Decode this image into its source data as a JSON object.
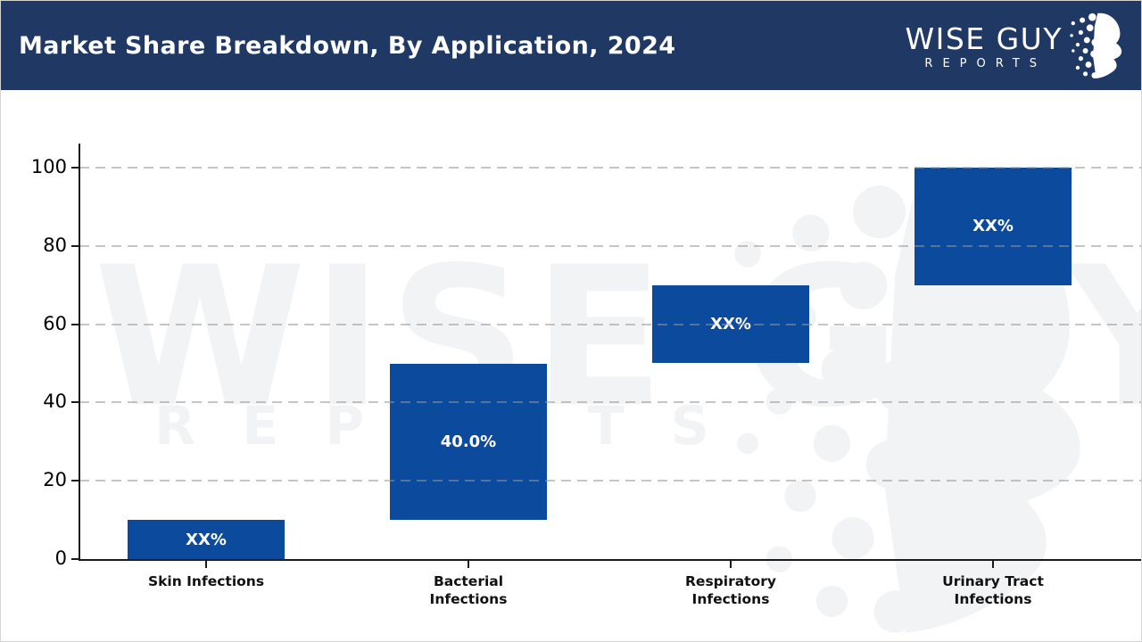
{
  "header": {
    "title": "Market Share Breakdown, By Application, 2024",
    "logo": {
      "name": "WISE GUY",
      "subname": "REPORTS"
    }
  },
  "watermark": {
    "line1": "WISE GUY",
    "line2": "REPORTS"
  },
  "chart_data": {
    "type": "bar",
    "subtype": "floating-segment-waterfall",
    "title": "Market Share Breakdown, By Application, 2024",
    "categories": [
      "Skin Infections",
      "Bacterial\nInfections",
      "Respiratory\nInfections",
      "Urinary Tract\nInfections"
    ],
    "bars": [
      {
        "category": "Skin Infections",
        "start": 0,
        "end": 10,
        "segment_value_pct": 10,
        "label": "XX%"
      },
      {
        "category": "Bacterial Infections",
        "start": 10,
        "end": 50,
        "segment_value_pct": 40,
        "label": "40.0%"
      },
      {
        "category": "Respiratory Infections",
        "start": 50,
        "end": 70,
        "segment_value_pct": 20,
        "label": "XX%"
      },
      {
        "category": "Urinary Tract Infections",
        "start": 70,
        "end": 100,
        "segment_value_pct": 30,
        "label": "XX%"
      }
    ],
    "xlabel": "",
    "ylabel": "",
    "yticks": [
      0,
      20,
      40,
      60,
      80,
      100
    ],
    "ylim": [
      0,
      106
    ],
    "grid": "horizontal dashed lines drawn above bars",
    "legend": "none",
    "bar_color": "#0c4a9e",
    "bar_label_color": "#ffffff"
  },
  "colors": {
    "header_bg": "#203864",
    "bar": "#0c4a9e",
    "grid": "#c8c8c8",
    "axis": "#1a1a1a",
    "watermark": "#f2f3f5",
    "page_border": "#d4d4d4"
  }
}
